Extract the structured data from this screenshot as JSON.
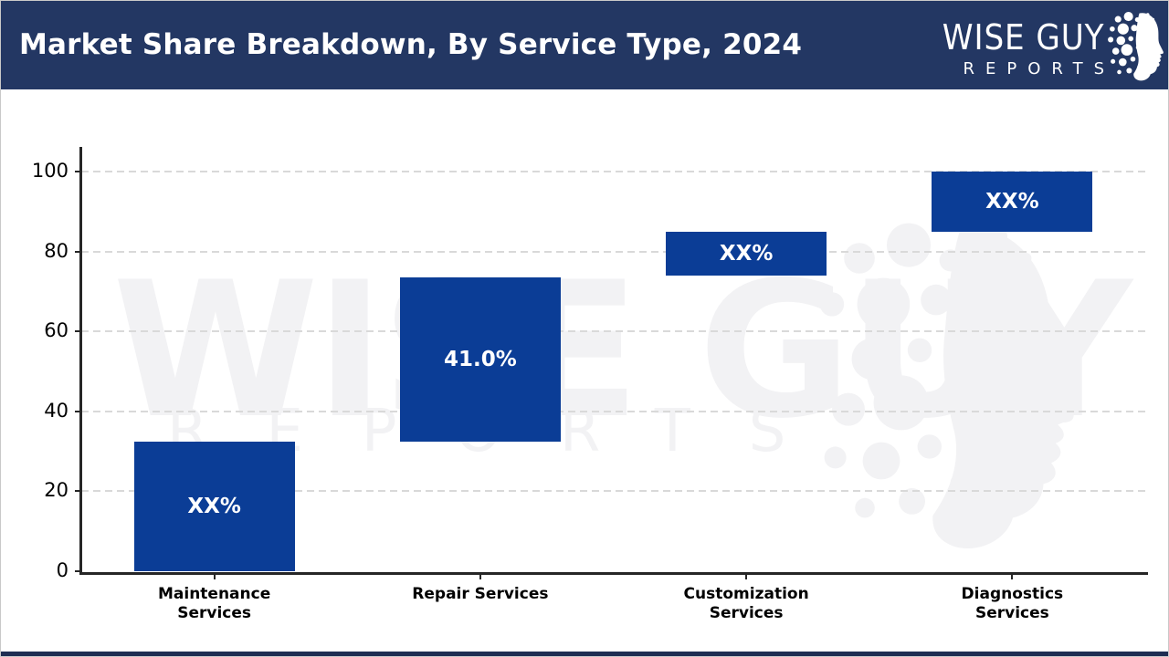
{
  "header": {
    "title": "Market Share Breakdown, By Service Type, 2024",
    "logo": {
      "wordmark": "WISE GUY",
      "subtext": "REPORTS"
    }
  },
  "watermark": {
    "wordmark": "WISE GUY",
    "subtext": "REPORTS"
  },
  "chart_data": {
    "type": "bar",
    "subtype": "floating-waterfall-segments",
    "title": "Market Share Breakdown, By Service Type, 2024",
    "xlabel": "",
    "ylabel": "",
    "ylim": [
      0,
      100
    ],
    "yticks": [
      0,
      20,
      40,
      60,
      80,
      100
    ],
    "grid": {
      "horizontal": true,
      "style": "dashed"
    },
    "legend": "none",
    "bar_color": "#0b3d96",
    "value_label_color": "#ffffff",
    "categories": [
      "Maintenance Services",
      "Repair Services",
      "Customization Services",
      "Diagnostics Services"
    ],
    "category_label_lines": [
      [
        "Maintenance",
        "Services"
      ],
      [
        "Repair Services"
      ],
      [
        "Customization",
        "Services"
      ],
      [
        "Diagnostics",
        "Services"
      ]
    ],
    "segments": [
      {
        "category": "Maintenance Services",
        "start": 0,
        "end": 32.5,
        "label": "XX%"
      },
      {
        "category": "Repair Services",
        "start": 32.5,
        "end": 73.5,
        "label": "41.0%"
      },
      {
        "category": "Customization Services",
        "start": 74.0,
        "end": 85.0,
        "label": "XX%"
      },
      {
        "category": "Diagnostics Services",
        "start": 85.0,
        "end": 100.0,
        "label": "XX%"
      }
    ]
  },
  "colors": {
    "header_bg": "#233763",
    "footer_bg": "#1e2d52",
    "bar": "#0b3d96",
    "grid": "#d9d9d9",
    "axis": "#262626",
    "tick_text": "#000000",
    "watermark": "#f2f2f4"
  }
}
